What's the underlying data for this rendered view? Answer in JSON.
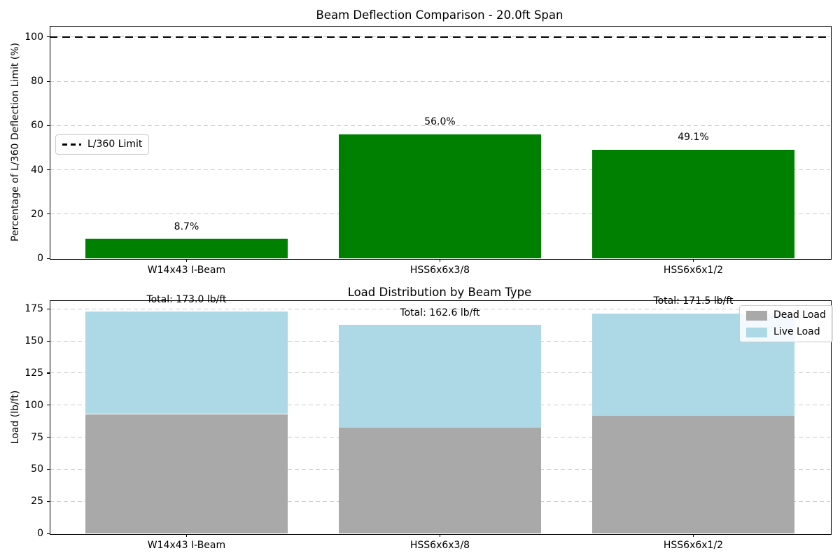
{
  "chart_data": [
    {
      "type": "bar",
      "title": "Beam Deflection Comparison - 20.0ft Span",
      "ylabel": "Percentage of L/360 Deflection Limit (%)",
      "categories": [
        "W14x43 I-Beam",
        "HSS6x6x3/8",
        "HSS6x6x1/2"
      ],
      "values": [
        8.7,
        56.0,
        49.1
      ],
      "bar_labels": [
        "8.7%",
        "56.0%",
        "49.1%"
      ],
      "bar_color": "#008000",
      "ylim": [
        0,
        105
      ],
      "yticks": [
        0,
        20,
        40,
        60,
        80,
        100
      ],
      "grid": "horizontal-dashed",
      "reference_line": {
        "value": 100,
        "style": "dashed",
        "color": "#000000"
      },
      "legend": {
        "position": "center-left",
        "entries": [
          {
            "label": "L/360 Limit",
            "swatch": "dashed-line",
            "color": "#000000"
          }
        ]
      }
    },
    {
      "type": "stacked-bar",
      "title": "Load Distribution by Beam Type",
      "ylabel": "Load (lb/ft)",
      "categories": [
        "W14x43 I-Beam",
        "HSS6x6x3/8",
        "HSS6x6x1/2"
      ],
      "series": [
        {
          "name": "Dead Load",
          "color": "#a9a9a9",
          "values": [
            93.0,
            82.6,
            91.5
          ]
        },
        {
          "name": "Live Load",
          "color": "#add8e6",
          "values": [
            80.0,
            80.0,
            80.0
          ]
        }
      ],
      "totals": [
        173.0,
        162.6,
        171.5
      ],
      "total_labels": [
        "Total: 173.0 lb/ft",
        "Total: 162.6 lb/ft",
        "Total: 171.5 lb/ft"
      ],
      "ylim": [
        0,
        181.65
      ],
      "yticks": [
        0,
        25,
        50,
        75,
        100,
        125,
        150,
        175
      ],
      "grid": "horizontal-dashed",
      "legend": {
        "position": "upper-right",
        "entries": [
          {
            "label": "Dead Load",
            "swatch": "patch",
            "color": "#a9a9a9"
          },
          {
            "label": "Live Load",
            "swatch": "patch",
            "color": "#add8e6"
          }
        ]
      }
    }
  ]
}
